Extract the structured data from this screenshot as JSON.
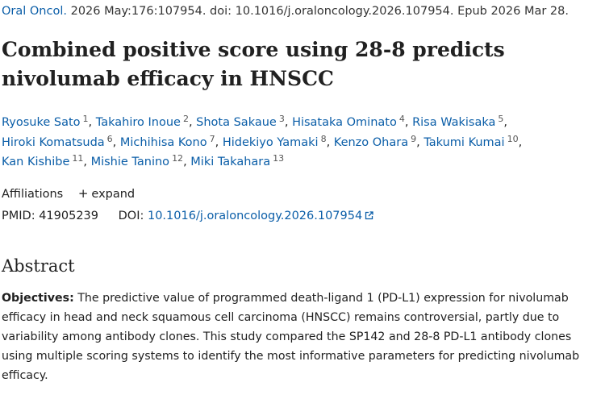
{
  "citation": {
    "journal": "Oral Oncol.",
    "details": " 2026 May:176:107954. doi: 10.1016/j.oraloncology.2026.107954. Epub 2026 Mar 28."
  },
  "article": {
    "title_line1": "Combined positive score using 28-8 predicts",
    "title_line2": "nivolumab efficacy in HNSCC"
  },
  "authors": [
    {
      "name": "Ryosuke Sato",
      "aff": "1"
    },
    {
      "name": "Takahiro Inoue",
      "aff": "2"
    },
    {
      "name": "Shota Sakaue",
      "aff": "3"
    },
    {
      "name": "Hisataka Ominato",
      "aff": "4"
    },
    {
      "name": "Risa Wakisaka",
      "aff": "5"
    },
    {
      "name": "Hiroki Komatsuda",
      "aff": "6"
    },
    {
      "name": "Michihisa Kono",
      "aff": "7"
    },
    {
      "name": "Hidekiyo Yamaki",
      "aff": "8"
    },
    {
      "name": "Kenzo Ohara",
      "aff": "9"
    },
    {
      "name": "Takumi Kumai",
      "aff": "10"
    },
    {
      "name": "Kan Kishibe",
      "aff": "11"
    },
    {
      "name": "Mishie Tanino",
      "aff": "12"
    },
    {
      "name": "Miki Takahara",
      "aff": "13"
    }
  ],
  "affiliations": {
    "label": "Affiliations",
    "expand_label": "expand",
    "expand_icon": "plus-icon"
  },
  "identifiers": {
    "pmid_label": "PMID:",
    "pmid": "41905239",
    "doi_label": "DOI:",
    "doi": "10.1016/j.oraloncology.2026.107954",
    "doi_icon": "external-link-icon"
  },
  "abstract": {
    "heading": "Abstract",
    "objectives_label": "Objectives:",
    "objectives_text": " The predictive value of programmed death-ligand 1 (PD-L1) expression for nivolumab efficacy in head and neck squamous cell carcinoma (HNSCC) remains controversial, partly due to variability among antibody clones. This study compared the SP142 and 28-8 PD-L1 antibody clones using multiple scoring systems to identify the most informative parameters for predicting nivolumab efficacy."
  },
  "colors": {
    "link": "#0b5ea8",
    "text": "#212121",
    "background": "#ffffff"
  }
}
